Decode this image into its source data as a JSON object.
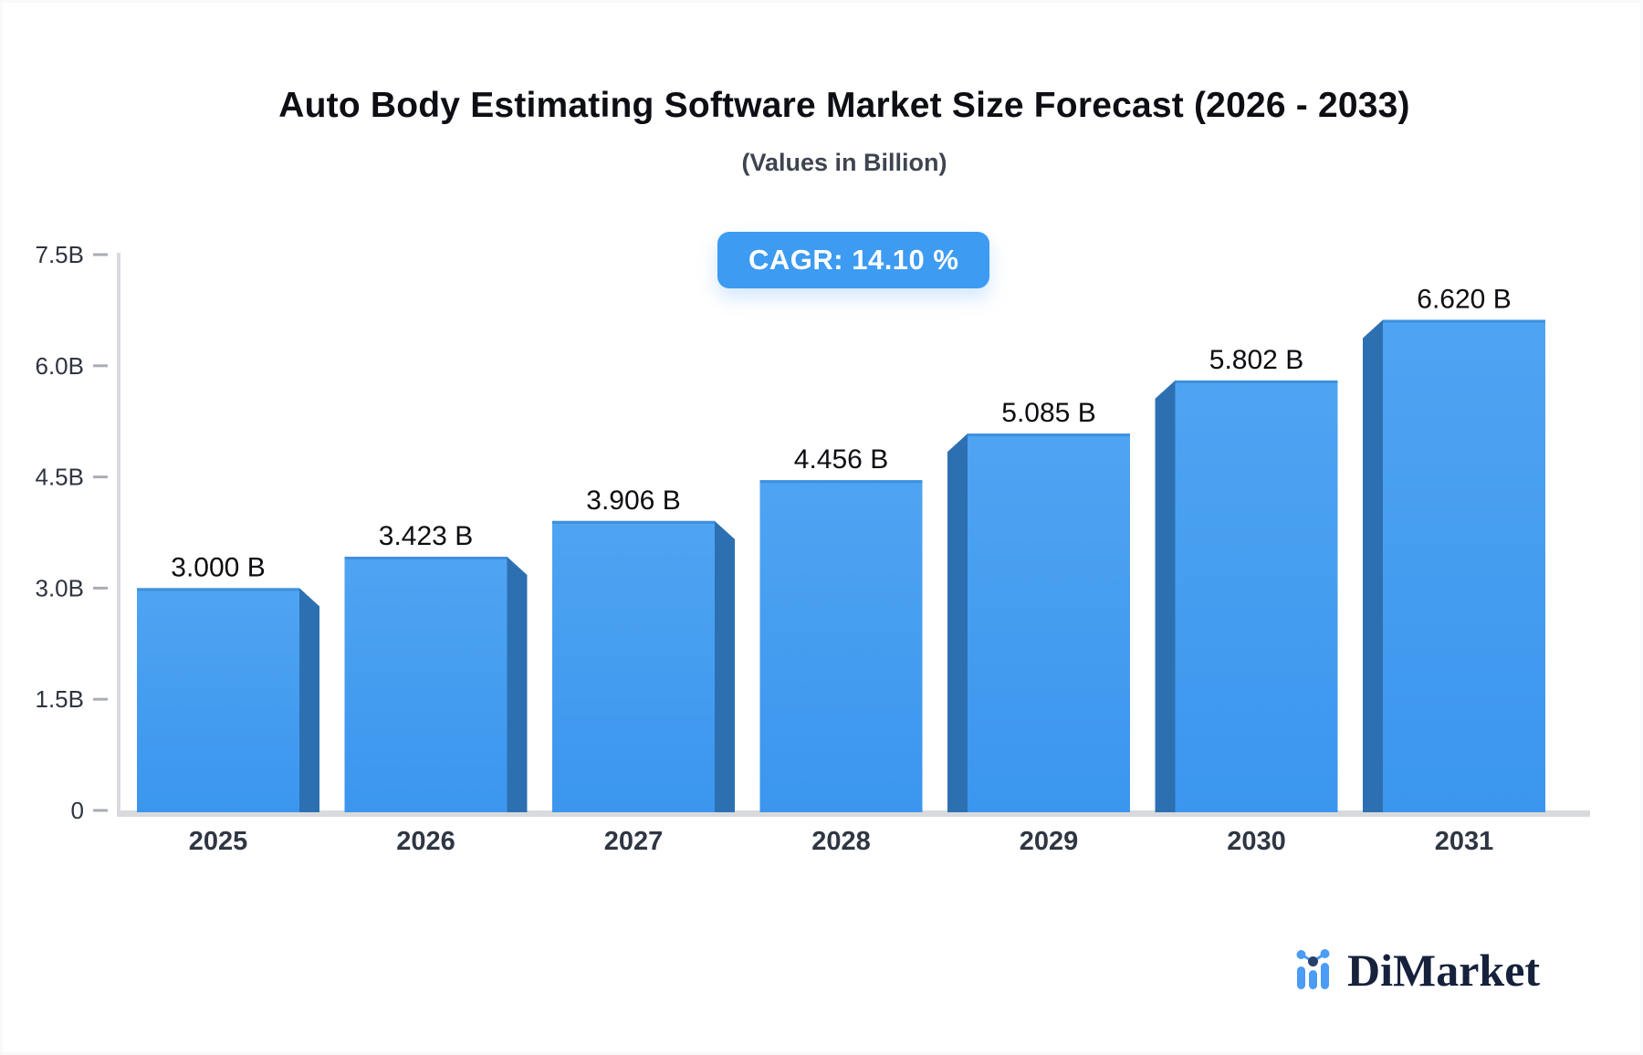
{
  "header": {
    "title": "Auto Body Estimating Software Market Size Forecast (2026 - 2033)",
    "subtitle": "(Values in Billion)",
    "cagr_label": "CAGR: 14.10 %"
  },
  "chart_data": {
    "type": "bar",
    "title": "Auto Body Estimating Software Market Size Forecast (2026 - 2033)",
    "subtitle": "(Values in Billion)",
    "cagr": "14.10%",
    "categories": [
      "2025",
      "2026",
      "2027",
      "2028",
      "2029",
      "2030",
      "2031"
    ],
    "values": [
      3.0,
      3.423,
      3.906,
      4.456,
      5.085,
      5.802,
      6.62
    ],
    "value_labels": [
      "3.000 B",
      "3.423 B",
      "3.906 B",
      "4.456 B",
      "5.085 B",
      "5.802 B",
      "6.620 B"
    ],
    "xlabel": "",
    "ylabel": "",
    "ylim": [
      0,
      7.5
    ],
    "yticks": [
      0,
      1.5,
      3.0,
      4.5,
      6.0,
      7.5
    ],
    "ytick_labels": [
      "0",
      "1.5B",
      "3.0B",
      "4.5B",
      "6.0B",
      "7.5B"
    ],
    "grid": false,
    "legend_position": "none",
    "colors": {
      "bar_face_top": "#4fa4f2",
      "bar_face_bottom": "#3b96ee",
      "bar_top_edge": "#3c8edc",
      "bar_side": "#2d70b2",
      "axis_line": "#d8dadd",
      "tick_mark": "#a9adb5",
      "y_label": "#2e3440",
      "x_label": "#2f3643",
      "value_label": "#0b0d10"
    }
  },
  "badge": {
    "background": "#3d9bf2",
    "text_color": "#ffffff"
  },
  "footer": {
    "logo_text": "DiMarket",
    "logo_text_color": "#16213c",
    "logo_blue": "#4a9cf5",
    "logo_navy": "#27406e"
  }
}
